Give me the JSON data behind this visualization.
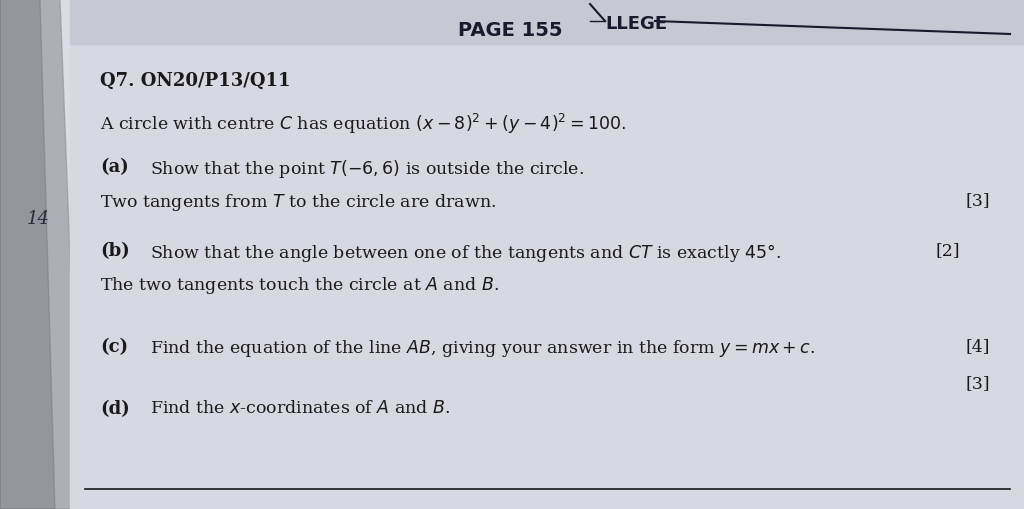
{
  "bg_color": "#c8c8d0",
  "page_bg": "#dcdce4",
  "page_header": "PAGE 155",
  "college_text": "LLEGE—",
  "question_label": "Q7. ON20/P13/Q11",
  "line1a": "A circle with centre ",
  "line1b": "C",
  "line1c": " has equation (",
  "line1d": "x",
  "line1e": "− 8)",
  "line1f": "2",
  "line1g": "+(y−4)",
  "line1h": "2",
  "line1i": " = 100.",
  "circle_eq": "A circle with centre $C$ has equation $(x-8)^2+(y-4)^2=100.$",
  "part_a_label": "(a)",
  "part_a_text": "Show that the point $T(-6, 6)$ is outside the circle.",
  "part_a_extra": "Two tangents from $T$ to the circle are drawn.",
  "part_a_marks": "[3]",
  "part_b_label": "(b)",
  "part_b_text": "Show that the angle between one of the tangents and $CT$ is exactly $45\\degree$.",
  "part_b_marks": "[2]",
  "part_b_extra": "The two tangents touch the circle at $A$ and $B$.",
  "part_c_label": "(c)",
  "part_c_text": "Find the equation of the line $AB$, giving your answer in the form $y = mx+c$.",
  "part_c_marks": "[4]",
  "part_d_label": "(d)",
  "part_d_text": "Find the $x$-coordinates of $A$ and $B$.",
  "part_d_marks": "[3]",
  "side_number": "14",
  "font_size_header": 14,
  "font_size_question": 13,
  "font_size_body": 12
}
